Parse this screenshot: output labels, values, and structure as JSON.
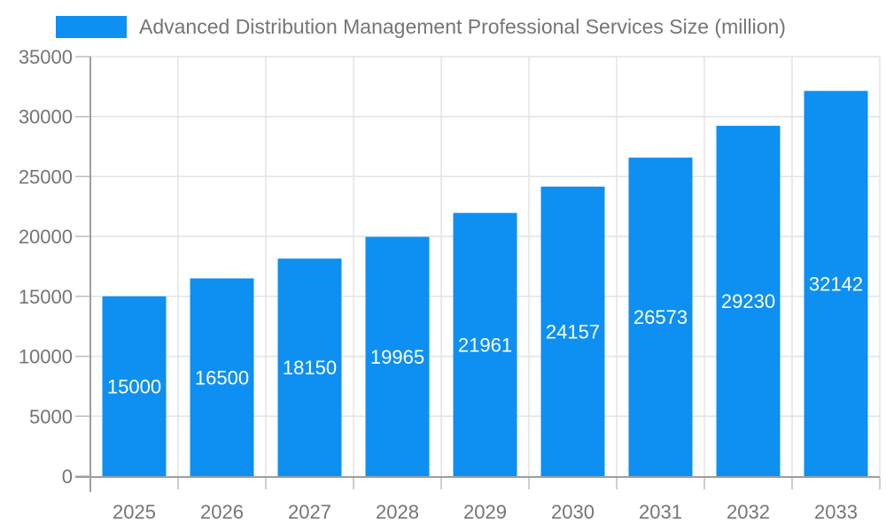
{
  "chart_data": {
    "type": "bar",
    "title": "Advanced Distribution Management Professional Services Size (million)",
    "series_name": "Advanced Distribution Management Professional Services Size (million)",
    "categories": [
      "2025",
      "2026",
      "2027",
      "2028",
      "2029",
      "2030",
      "2031",
      "2032",
      "2033"
    ],
    "values": [
      15000,
      16500,
      18150,
      19965,
      21961,
      24157,
      26573,
      29230,
      32142
    ],
    "xlabel": "",
    "ylabel": "",
    "ylim": [
      0,
      35000
    ],
    "ytick_step": 5000,
    "ytick_labels": [
      "0",
      "5000",
      "10000",
      "15000",
      "20000",
      "25000",
      "30000",
      "35000"
    ],
    "grid": "on",
    "legend_position": "top-left",
    "colors": {
      "bar": "#0d90f2",
      "value_label": "#ffffff",
      "axis_text": "#757575",
      "grid_line": "#e3e3e3",
      "axis_line": "#9e9e9e",
      "tick_mark": "#bdbdbd",
      "background": "#ffffff"
    }
  }
}
